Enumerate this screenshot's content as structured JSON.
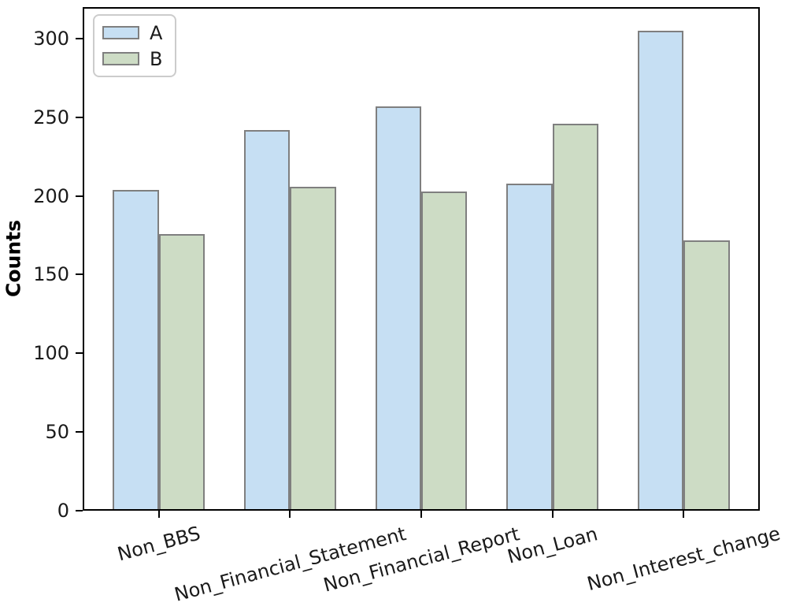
{
  "chart_data": {
    "type": "bar",
    "title": "",
    "xlabel": "",
    "ylabel": "Counts",
    "categories": [
      "Non_BBS",
      "Non_Financial_Statement",
      "Non_Financial_Report",
      "Non_Loan",
      "Non_Interest_change"
    ],
    "series": [
      {
        "name": "A",
        "color": "#c6dff3",
        "values": [
          204,
          242,
          257,
          208,
          305
        ]
      },
      {
        "name": "B",
        "color": "#cddcc5",
        "values": [
          176,
          206,
          203,
          246,
          172
        ]
      }
    ],
    "ylim": [
      0,
      320
    ],
    "yticks": [
      0,
      50,
      100,
      150,
      200,
      250,
      300
    ],
    "x_tick_rotation_deg": 15,
    "bar_width_fraction": 0.35,
    "bar_edge_color": "#7f7f7f",
    "axis_color": "#000000",
    "legend_position": "upper left",
    "legend_edge_color": "#cccccc",
    "grid": false
  }
}
